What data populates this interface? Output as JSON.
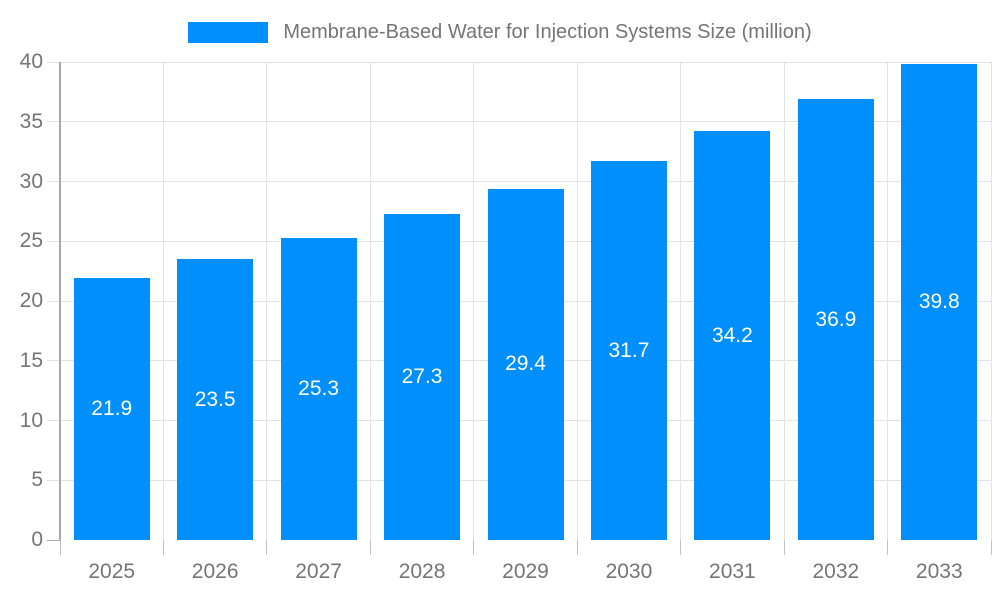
{
  "chart_data": {
    "type": "bar",
    "title": "Membrane-Based Water for Injection Systems Size (million)",
    "categories": [
      "2025",
      "2026",
      "2027",
      "2028",
      "2029",
      "2030",
      "2031",
      "2032",
      "2033"
    ],
    "values": [
      21.9,
      23.5,
      25.3,
      27.3,
      29.4,
      31.7,
      34.2,
      36.9,
      39.8
    ],
    "xlabel": "",
    "ylabel": "",
    "ylim": [
      0,
      40
    ],
    "yticks": [
      0,
      5,
      10,
      15,
      20,
      25,
      30,
      35,
      40
    ],
    "grid": true,
    "legend_position": "top-center",
    "value_label_position": "inside-middle",
    "colors": {
      "bar": "#008FFB",
      "bar_value_text": "#FFFFFF",
      "axis_text": "#757575",
      "title_text": "#757575",
      "gridline": "#E3E3E3",
      "axis_line": "#A8A8A8",
      "tick": "#C2C2C2",
      "background": "#FFFFFF"
    }
  }
}
